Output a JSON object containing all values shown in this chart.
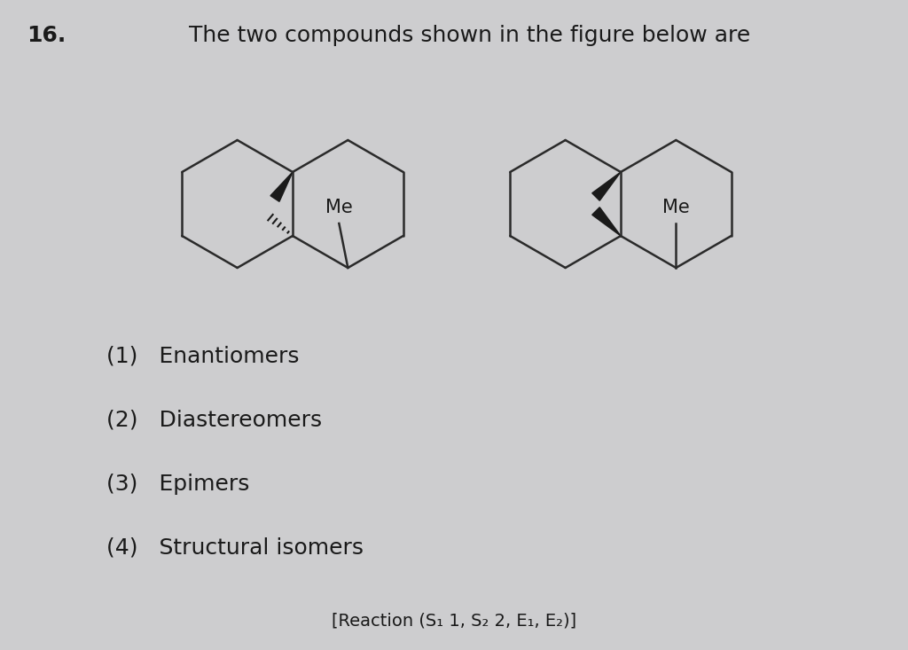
{
  "background_color": "#cdcdcf",
  "title_text": "The two compounds shown in the figure below are",
  "title_fontsize": 18,
  "title_color": "#1a1a1a",
  "question_num_text": "16.",
  "options": [
    "(1)   Enantiomers",
    "(2)   Diastereomers",
    "(3)   Epimers",
    "(4)   Structural isomers"
  ],
  "options_fontsize": 18,
  "options_color": "#1a1a1a",
  "line_color": "#2a2a2a",
  "line_width": 1.8,
  "wedge_color": "#1a1a1a",
  "me_label_color": "#1a1a1a",
  "me_fontsize": 15
}
